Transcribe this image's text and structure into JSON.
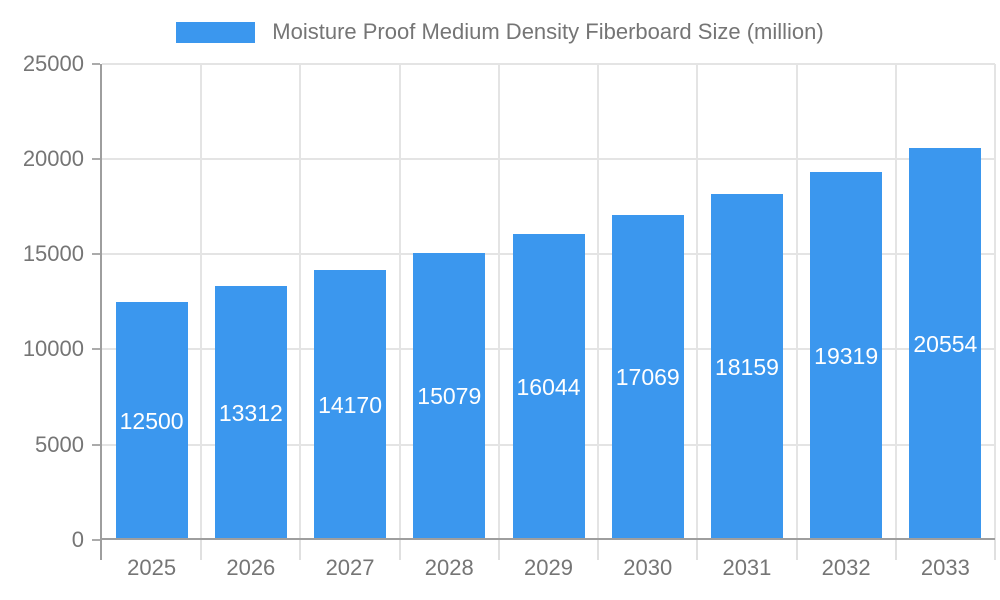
{
  "chart_data": {
    "type": "bar",
    "legend": {
      "label": "Moisture Proof Medium Density Fiberboard Size (million)",
      "position": "top"
    },
    "categories": [
      "2025",
      "2026",
      "2027",
      "2028",
      "2029",
      "2030",
      "2031",
      "2032",
      "2033"
    ],
    "series": [
      {
        "name": "Moisture Proof Medium Density Fiberboard Size (million)",
        "values": [
          12500,
          13312,
          14170,
          15079,
          16044,
          17069,
          18159,
          19319,
          20554
        ]
      }
    ],
    "bar_value_labels": [
      "12500",
      "13312",
      "14170",
      "15079",
      "16044",
      "17069",
      "18159",
      "19319",
      "20554"
    ],
    "xlabel": "",
    "ylabel": "",
    "ylim": [
      0,
      25000
    ],
    "yticks": [
      0,
      5000,
      10000,
      15000,
      20000,
      25000
    ],
    "grid": "horizontal-and-vertical",
    "legend_position": "top-center",
    "colors": {
      "bar": "#3B97EE",
      "bar_label_text": "#FFFFFF",
      "axis_text": "#757575",
      "axis_line": "#9E9E9E",
      "tick": "#ABABAB",
      "gridline": "#E4E4E4",
      "below_axis_tick": "#E0E0E0",
      "background": "#FFFFFF"
    }
  }
}
